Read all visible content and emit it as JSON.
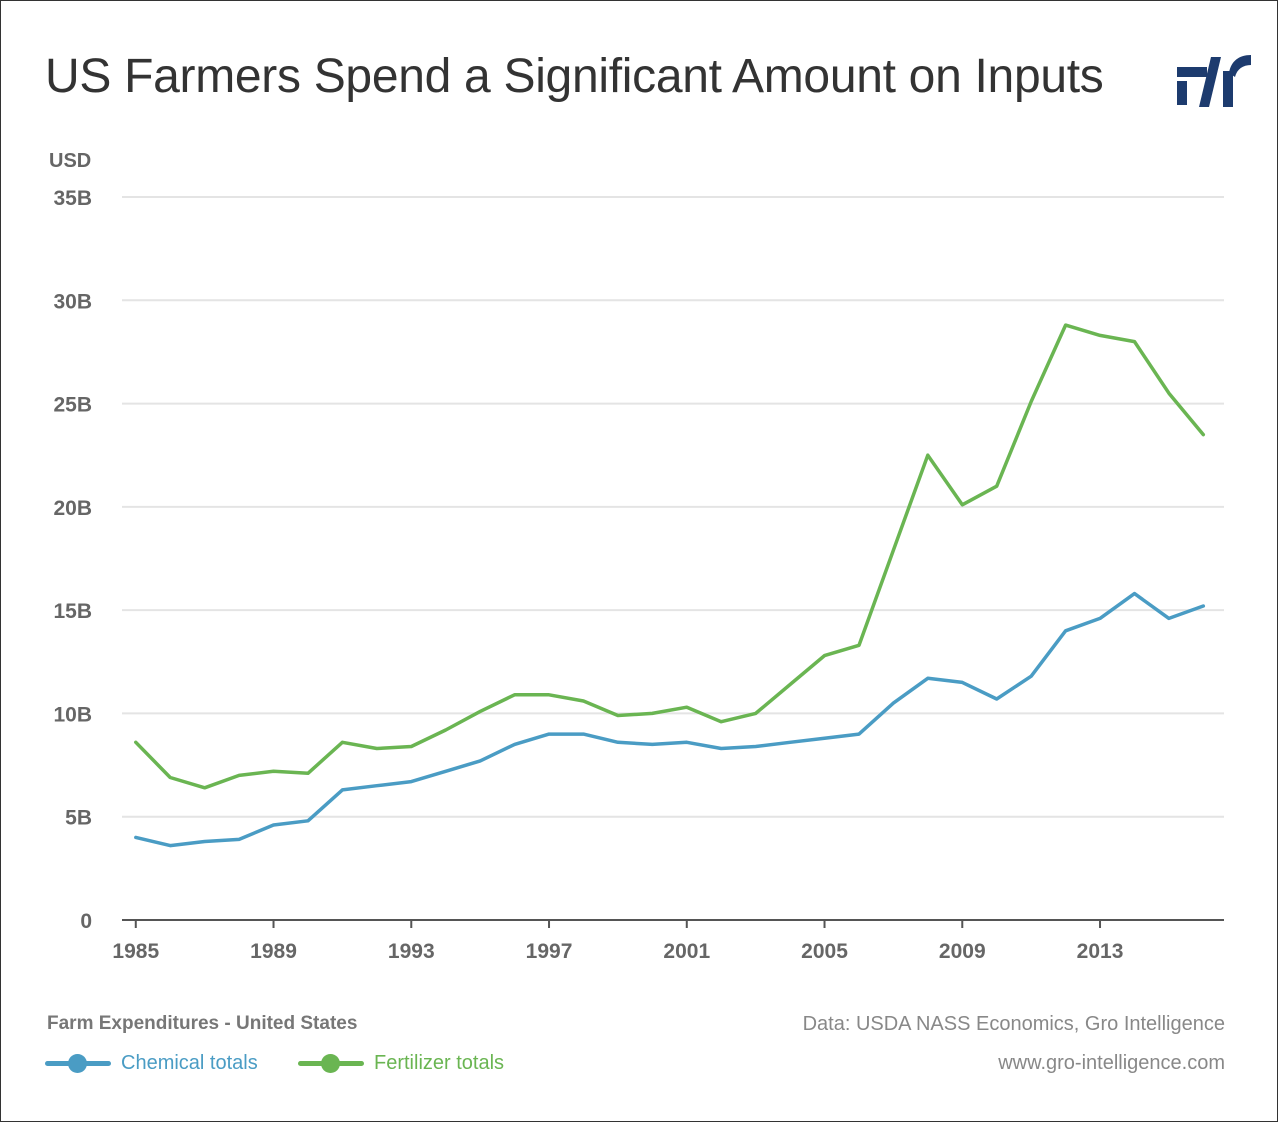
{
  "title": "US Farmers Spend a Significant Amount on Inputs",
  "logo": "gro-intelligence-logo",
  "footer": {
    "chart_name": "Farm Expenditures - United States",
    "source": "Data: USDA NASS Economics, Gro Intelligence",
    "website": "www.gro-intelligence.com"
  },
  "colors": {
    "chemical": "#4a9cc4",
    "fertilizer": "#6ab552",
    "grid": "#e4e4e4",
    "axis": "#555555",
    "tick_text": "#666666",
    "logo": "#1d3b6e"
  },
  "chart_data": {
    "type": "line",
    "title": "US Farmers Spend a Significant Amount on Inputs",
    "ylabel": "USD",
    "xlabel": "",
    "xlim": [
      1984.6,
      2016.6
    ],
    "ylim": [
      0,
      35
    ],
    "grid": true,
    "legend_position": "bottom-left",
    "x_ticks": [
      1985,
      1989,
      1993,
      1997,
      2001,
      2005,
      2009,
      2013
    ],
    "x_tick_labels": [
      "1985",
      "1989",
      "1993",
      "1997",
      "2001",
      "2005",
      "2009",
      "2013"
    ],
    "y_ticks": [
      0,
      5,
      10,
      15,
      20,
      25,
      30,
      35
    ],
    "y_tick_labels": [
      "0",
      "5B",
      "10B",
      "15B",
      "20B",
      "25B",
      "30B",
      "35B"
    ],
    "x": [
      1985,
      1986,
      1987,
      1988,
      1989,
      1990,
      1991,
      1992,
      1993,
      1994,
      1995,
      1996,
      1997,
      1998,
      1999,
      2000,
      2001,
      2002,
      2003,
      2004,
      2005,
      2006,
      2007,
      2008,
      2009,
      2010,
      2011,
      2012,
      2013,
      2014,
      2015,
      2016
    ],
    "series": [
      {
        "name": "Chemical totals",
        "color": "#4a9cc4",
        "values": [
          4.0,
          3.6,
          3.8,
          3.9,
          4.6,
          4.8,
          6.3,
          6.5,
          6.7,
          7.2,
          7.7,
          8.5,
          9.0,
          9.0,
          8.6,
          8.5,
          8.6,
          8.3,
          8.4,
          8.6,
          8.8,
          9.0,
          10.5,
          11.7,
          11.5,
          10.7,
          11.8,
          14.0,
          14.6,
          15.8,
          14.6,
          15.2
        ]
      },
      {
        "name": "Fertilizer totals",
        "color": "#6ab552",
        "values": [
          8.6,
          6.9,
          6.4,
          7.0,
          7.2,
          7.1,
          8.6,
          8.3,
          8.4,
          9.2,
          10.1,
          10.9,
          10.9,
          10.6,
          9.9,
          10.0,
          10.3,
          9.6,
          10.0,
          11.4,
          12.8,
          13.3,
          17.9,
          22.5,
          20.1,
          21.0,
          25.1,
          28.8,
          28.3,
          28.0,
          25.5,
          23.5
        ]
      }
    ]
  }
}
